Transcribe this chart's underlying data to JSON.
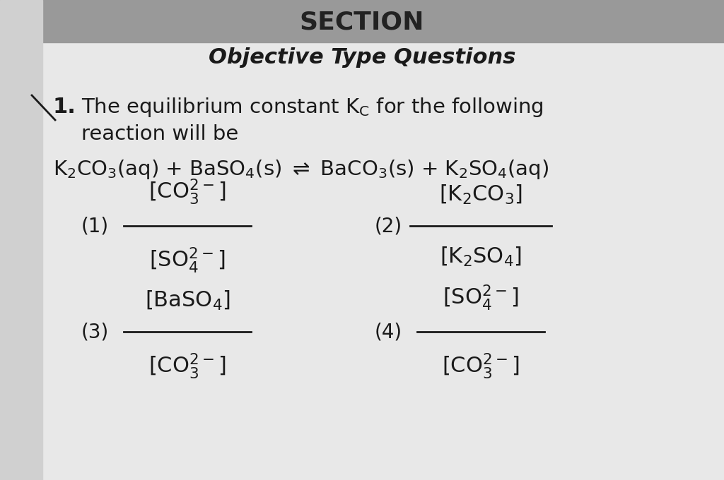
{
  "bg_top": "#b0b0b0",
  "bg_main": "#e8e8e8",
  "text_color": "#1a1a1a",
  "figsize": [
    10.24,
    6.8
  ],
  "dpi": 100,
  "section_title": "SECTION",
  "heading": "Objective Type Questions",
  "q_num": "1.",
  "q_line1a": "The equilibrium constant K",
  "q_line1b": "C",
  "q_line1c": " for the following",
  "q_line2": "reaction will be",
  "reaction": "K$_2$CO$_3$(aq) + BaSO$_4$(s) $\\rightleftharpoons$ BaCO$_3$(s) + K$_2$SO$_4$(aq)",
  "opt1_label": "(1)",
  "opt1_num": "$[{\\rm CO}_3^{2-}]$",
  "opt1_den": "$[{\\rm SO}_4^{2-}]$",
  "opt2_label": "(2)",
  "opt2_num": "$[{\\rm K}_2{\\rm CO}_3]$",
  "opt2_den": "$[{\\rm K}_2{\\rm SO}_4]$",
  "opt3_label": "(3)",
  "opt3_num": "$[{\\rm BaSO}_4]$",
  "opt3_den": "$[{\\rm CO}_3^{2-}]$",
  "opt4_label": "(4)",
  "opt4_num": "$[{\\rm SO}_4^{2-}]$",
  "opt4_den": "$[{\\rm CO}_3^{2-}]$"
}
